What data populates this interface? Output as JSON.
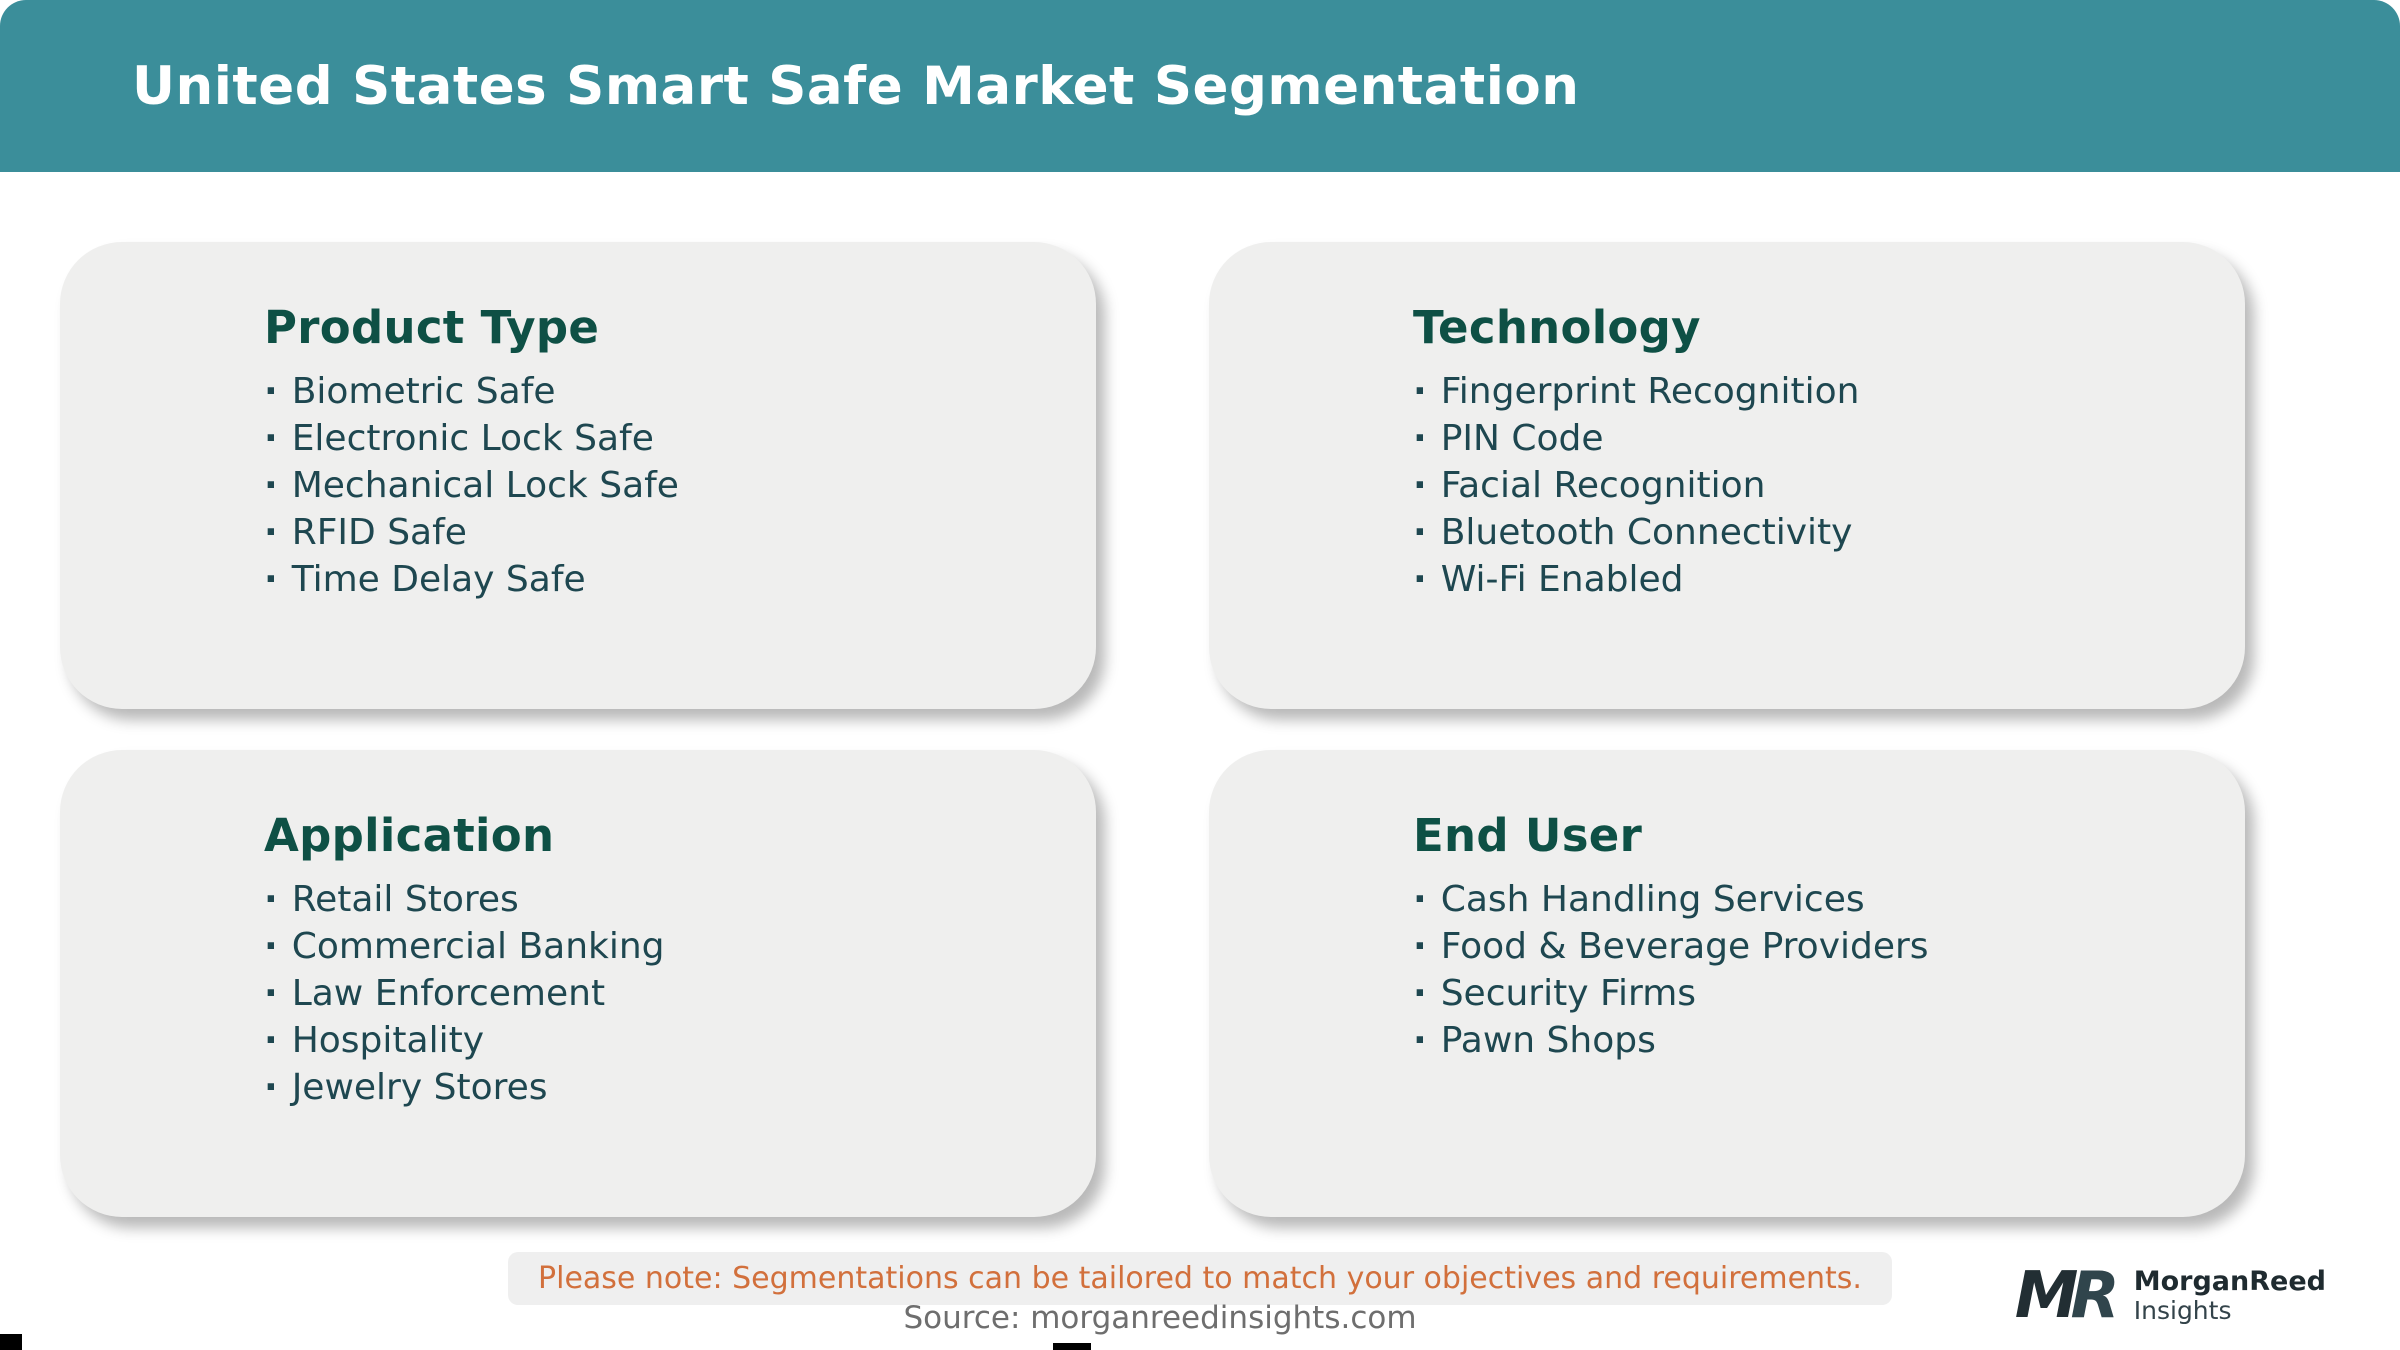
{
  "bullet": "·",
  "header": {
    "title": "United States Smart Safe Market Segmentation"
  },
  "cards": [
    {
      "title": "Product Type",
      "items": [
        "Biometric Safe",
        "Electronic Lock Safe",
        "Mechanical Lock Safe",
        "RFID Safe",
        "Time Delay Safe"
      ]
    },
    {
      "title": "Technology",
      "items": [
        "Fingerprint Recognition",
        "PIN Code",
        "Facial Recognition",
        "Bluetooth Connectivity",
        "Wi-Fi Enabled"
      ]
    },
    {
      "title": "Application",
      "items": [
        "Retail Stores",
        "Commercial Banking",
        "Law Enforcement",
        "Hospitality",
        "Jewelry Stores"
      ]
    },
    {
      "title": "End User",
      "items": [
        "Cash Handling Services",
        "Food & Beverage Providers",
        "Security Firms",
        "Pawn Shops"
      ]
    }
  ],
  "footer": {
    "note": "Please note: Segmentations can be tailored to match your objectives and requirements.",
    "source": "Source: morganreedinsights.com"
  },
  "logo": {
    "monogram_m": "M",
    "monogram_r": "R",
    "name": "MorganReed",
    "subtitle": "Insights"
  },
  "colors": {
    "header_bg": "#3b8e9a",
    "card_bg": "#efefee",
    "card_title": "#0e5045",
    "card_item": "#1e4750",
    "note_text": "#d2703c",
    "source_text": "#6e6e6e"
  }
}
